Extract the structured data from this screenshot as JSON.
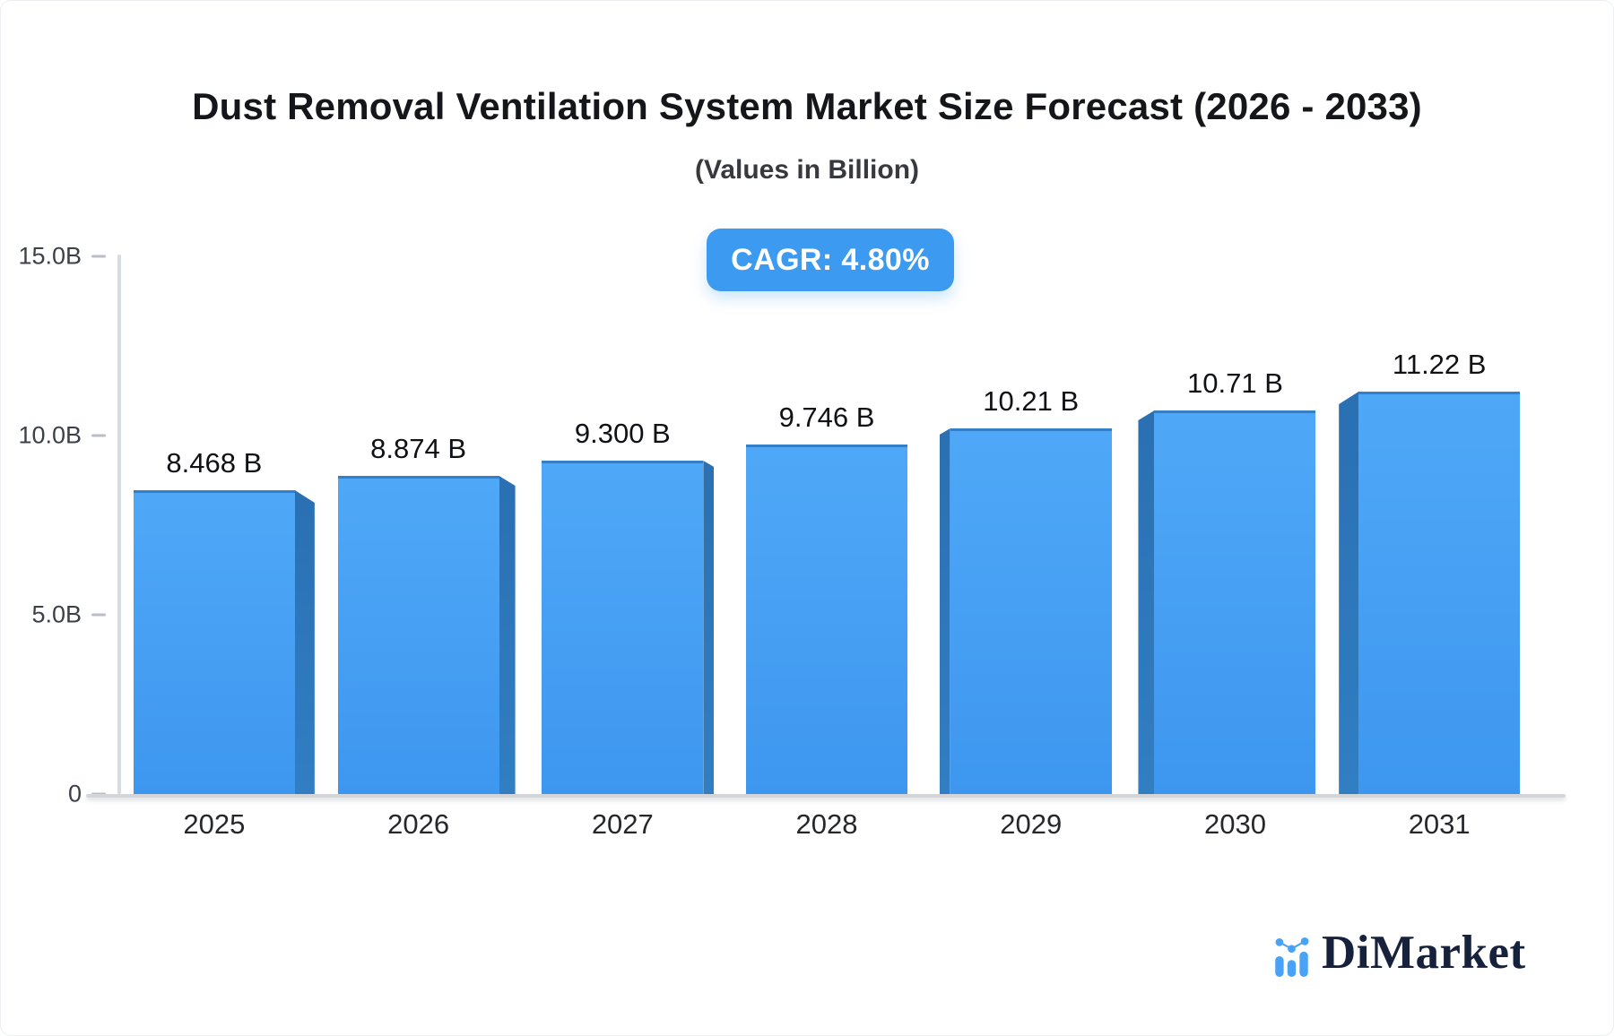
{
  "header": {
    "title": "Dust Removal Ventilation System Market Size Forecast (2026 - 2033)",
    "subtitle": "(Values in Billion)"
  },
  "badge": {
    "label": "CAGR: 4.80%"
  },
  "chart_data": {
    "type": "bar",
    "title": "Dust Removal Ventilation System Market Size Forecast (2026 - 2033)",
    "subtitle": "(Values in Billion)",
    "cagr": "4.80%",
    "categories": [
      "2025",
      "2026",
      "2027",
      "2028",
      "2029",
      "2030",
      "2031"
    ],
    "values": [
      8.468,
      8.874,
      9.3,
      9.746,
      10.21,
      10.71,
      11.22
    ],
    "value_labels": [
      "8.468 B",
      "8.874 B",
      "9.300 B",
      "9.746 B",
      "10.21 B",
      "10.71 B",
      "11.22 B"
    ],
    "xlabel": "",
    "ylabel": "",
    "ylim": [
      0,
      15
    ],
    "yticks": [
      {
        "value": 0,
        "label": "0"
      },
      {
        "value": 5,
        "label": "5.0B"
      },
      {
        "value": 10,
        "label": "10.0B"
      },
      {
        "value": 15,
        "label": "15.0B"
      }
    ],
    "grid": false,
    "legend": null,
    "style": "pseudo-3d-bars, perspective vanishing at center bar"
  },
  "logo": {
    "text": "DiMarket",
    "icon": "mini-bar-line-chart-icon"
  },
  "colors": {
    "bar_face_top": "#4fa8f7",
    "bar_face_bottom": "#3e97ef",
    "bar_side": "#2e77ba",
    "badge_bg": "#3c9bf0",
    "axis_line": "#d6dae2",
    "tick_label": "#3b4049",
    "title_text": "#15161a",
    "logo_navy": "#16213c",
    "logo_blue": "#4aa2f6"
  }
}
